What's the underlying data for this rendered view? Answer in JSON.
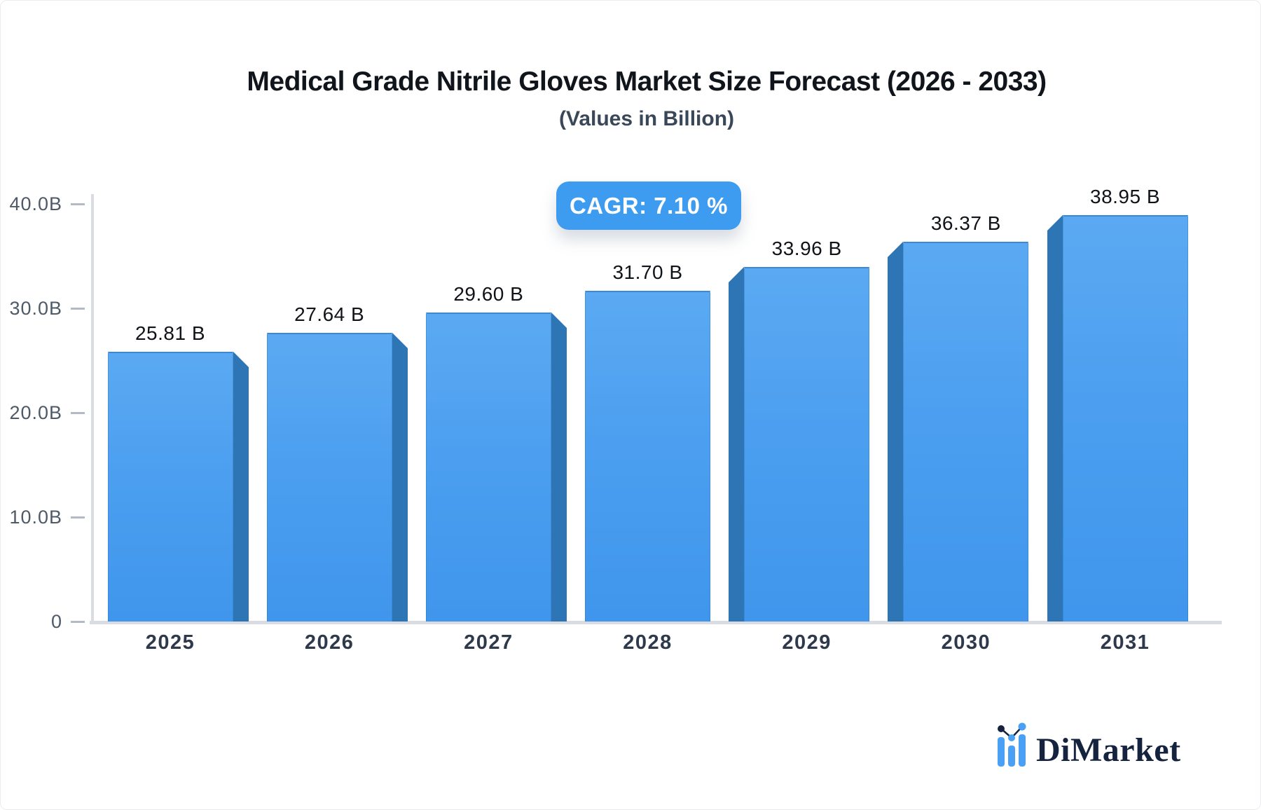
{
  "title": "Medical Grade Nitrile Gloves Market Size Forecast (2026 - 2033)",
  "subtitle": "(Values in Billion)",
  "badge": {
    "label": "CAGR: 7.10 %",
    "color": "#3d9bf0"
  },
  "chart_data": {
    "type": "bar",
    "categories": [
      "2025",
      "2026",
      "2027",
      "2028",
      "2029",
      "2030",
      "2031"
    ],
    "values": [
      25.81,
      27.64,
      29.6,
      31.7,
      33.96,
      36.37,
      38.95
    ],
    "value_labels": [
      "25.81 B",
      "27.64 B",
      "29.60 B",
      "31.70 B",
      "33.96 B",
      "36.37 B",
      "38.95 B"
    ],
    "title": "Medical Grade Nitrile Gloves Market Size Forecast (2026 - 2033)",
    "subtitle": "(Values in Billion)",
    "xlabel": "",
    "ylabel": "",
    "ylim": [
      0,
      40
    ],
    "y_ticks": [
      "40.0B",
      "30.0B",
      "20.0B",
      "10.0B",
      "0"
    ],
    "y_tick_values": [
      40,
      30,
      20,
      10,
      0
    ],
    "grid": false,
    "legend": false,
    "style_3d": "beveled side panels, vanishing point at center bar",
    "bar_color": "#4c9ff0",
    "bar_side_color": "#2e75b6",
    "axis_color": "#d9dde3",
    "label_color": "#101318"
  },
  "logo": {
    "text": "DiMarket",
    "color": "#16233f",
    "icon_blue": "#4aa0f5"
  }
}
